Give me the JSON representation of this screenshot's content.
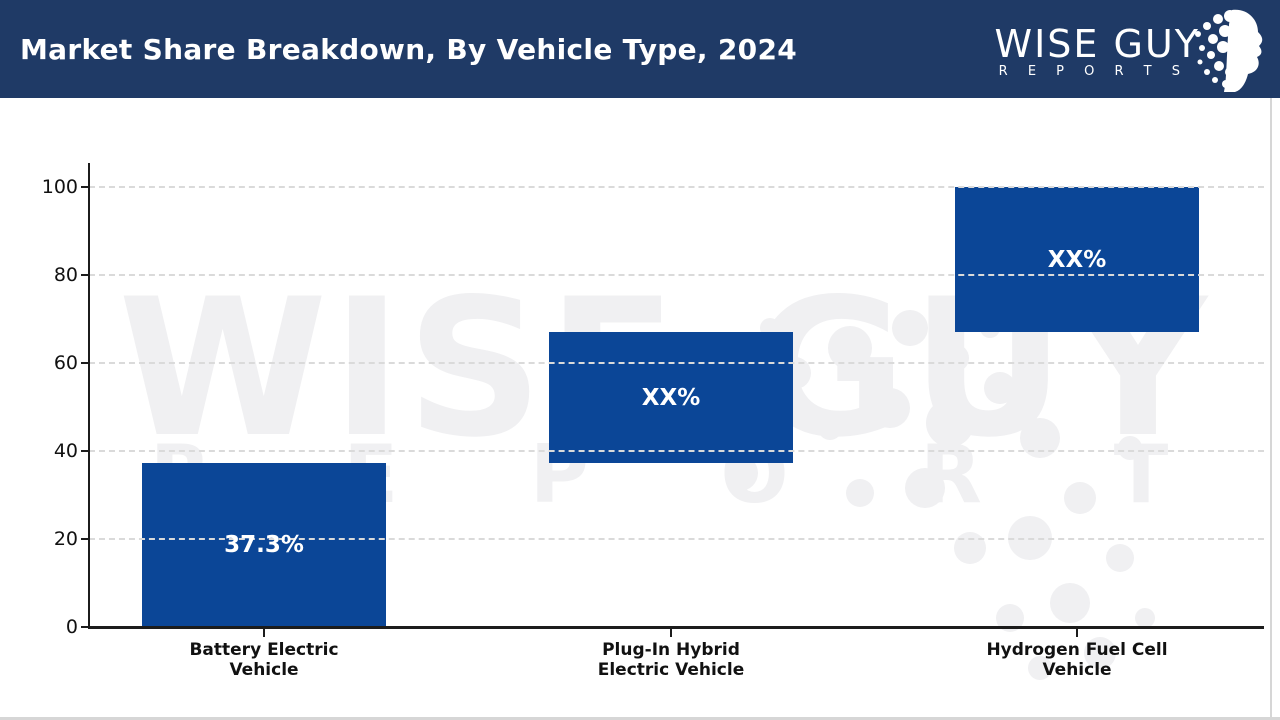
{
  "header": {
    "title": "Market Share Breakdown, By Vehicle Type, 2024",
    "bg_color": "#1f3a66",
    "logo": {
      "wordmark": "WISE GUY",
      "reports_label": "R E P O R T S"
    }
  },
  "watermark": {
    "wordmark": "WISE GUY",
    "reports_label": "R E P O R T S"
  },
  "chart_data": {
    "type": "bar",
    "subtype": "floating-waterfall",
    "title": "Market Share Breakdown, By Vehicle Type, 2024",
    "categories": [
      "Battery Electric Vehicle",
      "Plug-In Hybrid Electric Vehicle",
      "Hydrogen Fuel Cell Vehicle"
    ],
    "category_lines": [
      [
        "Battery Electric",
        "Vehicle"
      ],
      [
        "Plug-In Hybrid",
        "Electric Vehicle"
      ],
      [
        "Hydrogen Fuel Cell",
        "Vehicle"
      ]
    ],
    "series": [
      {
        "name": "Market Share (%)",
        "segments": [
          {
            "category": "Battery Electric Vehicle",
            "start": 0,
            "end": 37.3,
            "label": "37.3%"
          },
          {
            "category": "Plug-In Hybrid Electric Vehicle",
            "start": 37.3,
            "end": 67,
            "label": "XX%"
          },
          {
            "category": "Hydrogen Fuel Cell Vehicle",
            "start": 67,
            "end": 100,
            "label": "XX%"
          }
        ]
      }
    ],
    "xlabel": "",
    "ylabel": "",
    "ylim": [
      0,
      105
    ],
    "yticks": [
      0,
      20,
      40,
      60,
      80,
      100
    ],
    "grid": "horizontal-dashed",
    "legend": "none",
    "colors": {
      "bar": "#0b4697",
      "bar_label": "#ffffff",
      "grid": "#dadada",
      "axis": "#1c1c1c",
      "tick_text": "#111111",
      "header_bg": "#1f3a66",
      "watermark": "#f0f0f2",
      "border": "#d6d6d6"
    }
  }
}
